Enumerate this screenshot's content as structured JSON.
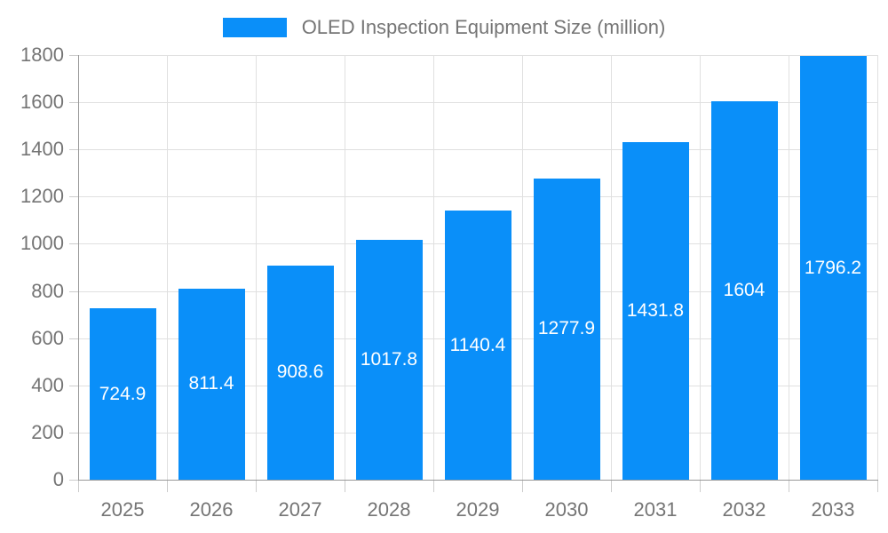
{
  "legend": {
    "label": "OLED Inspection Equipment Size (million)"
  },
  "chart_data": {
    "type": "bar",
    "title": "OLED Inspection Equipment Size (million)",
    "categories": [
      "2025",
      "2026",
      "2027",
      "2028",
      "2029",
      "2030",
      "2031",
      "2032",
      "2033"
    ],
    "values": [
      724.9,
      811.4,
      908.6,
      1017.8,
      1140.4,
      1277.9,
      1431.8,
      1604,
      1796.2
    ],
    "data_labels": [
      "724.9",
      "811.4",
      "908.6",
      "1017.8",
      "1140.4",
      "1277.9",
      "1431.8",
      "1604",
      "1796.2"
    ],
    "xlabel": "",
    "ylabel": "",
    "ylim": [
      0,
      1800
    ],
    "ytick_step": 200,
    "ytick_labels": [
      "0",
      "200",
      "400",
      "600",
      "800",
      "1000",
      "1200",
      "1400",
      "1600",
      "1800"
    ],
    "grid": true,
    "legend_position": "top-center",
    "data_label_position": "center-of-bar",
    "colors": {
      "bar": "#0A8FF9",
      "grid": "#E0E0E0",
      "axis": "#999999",
      "tickmark": "#CCCCCC",
      "text": "#757575",
      "data_label": "#FFFFFF",
      "background": "#FFFFFF"
    }
  }
}
